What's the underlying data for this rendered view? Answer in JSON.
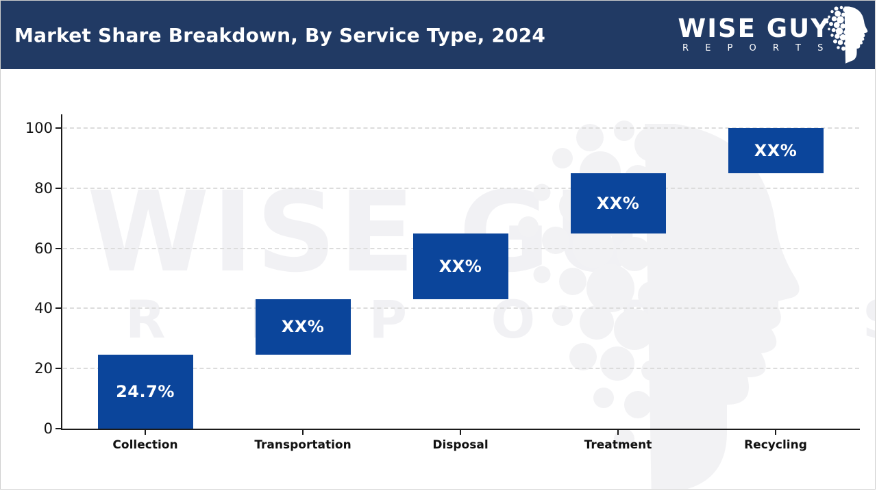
{
  "header": {
    "title": "Market Share Breakdown, By Service Type, 2024",
    "background": "#213a64",
    "logo": {
      "line1": "WISE GUY",
      "line2": "R E P O R T S"
    }
  },
  "watermark": {
    "line1": "WISE GUY",
    "line2": "R E P O R T S"
  },
  "chart_data": {
    "type": "bar",
    "subtype": "waterfall",
    "title": "Market Share Breakdown, By Service Type, 2024",
    "xlabel": "",
    "ylabel": "",
    "ylim": [
      0,
      100
    ],
    "yticks": [
      0,
      20,
      40,
      60,
      80,
      100
    ],
    "grid": "horizontal-dashed",
    "legend": "none",
    "categories": [
      "Collection",
      "Transportation",
      "Disposal",
      "Treatment",
      "Recycling"
    ],
    "bars": [
      {
        "category": "Collection",
        "start": 0,
        "end": 24.7,
        "label": "24.7%"
      },
      {
        "category": "Transportation",
        "start": 24.7,
        "end": 43,
        "label": "XX%"
      },
      {
        "category": "Disposal",
        "start": 43,
        "end": 65,
        "label": "XX%"
      },
      {
        "category": "Treatment",
        "start": 65,
        "end": 85,
        "label": "XX%"
      },
      {
        "category": "Recycling",
        "start": 85,
        "end": 100,
        "label": "XX%"
      }
    ],
    "bar_color": "#0b459b",
    "bar_label_color": "#ffffff",
    "grid_color": "#dcdcdc",
    "axis_color": "#1a1a1a",
    "watermark_color": "#f1f1f4"
  }
}
